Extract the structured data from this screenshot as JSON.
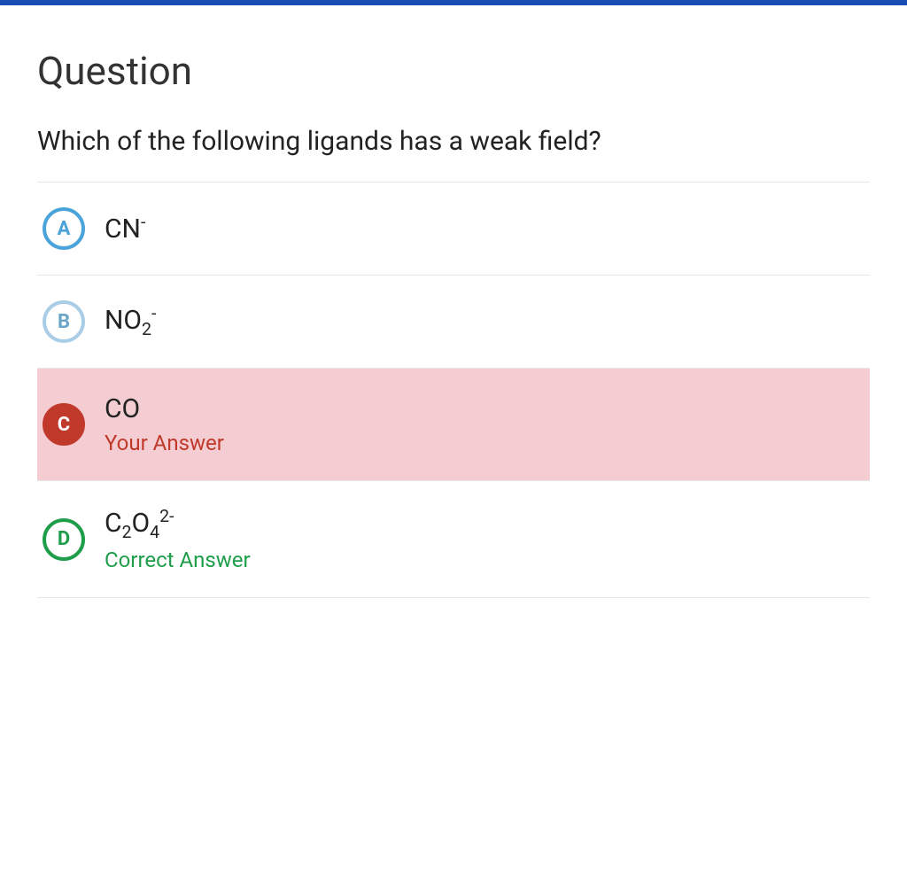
{
  "colors": {
    "top_bar": "#1a4db3",
    "heading": "#333333",
    "text": "#222222",
    "border": "#e6e6e6",
    "badge_a_border": "#4aa3d9",
    "badge_b_border": "#a9cde6",
    "wrong": "#c0392b",
    "wrong_bg": "#f3cdd1",
    "correct": "#1e9e4a",
    "background": "#ffffff"
  },
  "typography": {
    "heading_fontsize": 44,
    "prompt_fontsize": 30,
    "option_fontsize": 30,
    "sub_fontsize": 24,
    "badge_fontsize": 22
  },
  "question": {
    "heading": "Question",
    "prompt": "Which of the following ligands has a weak field?"
  },
  "options": {
    "a": {
      "letter": "A",
      "label_html": "CN<sup>-</sup>"
    },
    "b": {
      "letter": "B",
      "label_html": "NO<sub>2</sub><sup>-</sup>"
    },
    "c": {
      "letter": "C",
      "label_html": "CO",
      "sub": "Your Answer"
    },
    "d": {
      "letter": "D",
      "label_html": "C<sub>2</sub>O<sub>4</sub><sup>2-</sup>",
      "sub": "Correct Answer"
    }
  }
}
